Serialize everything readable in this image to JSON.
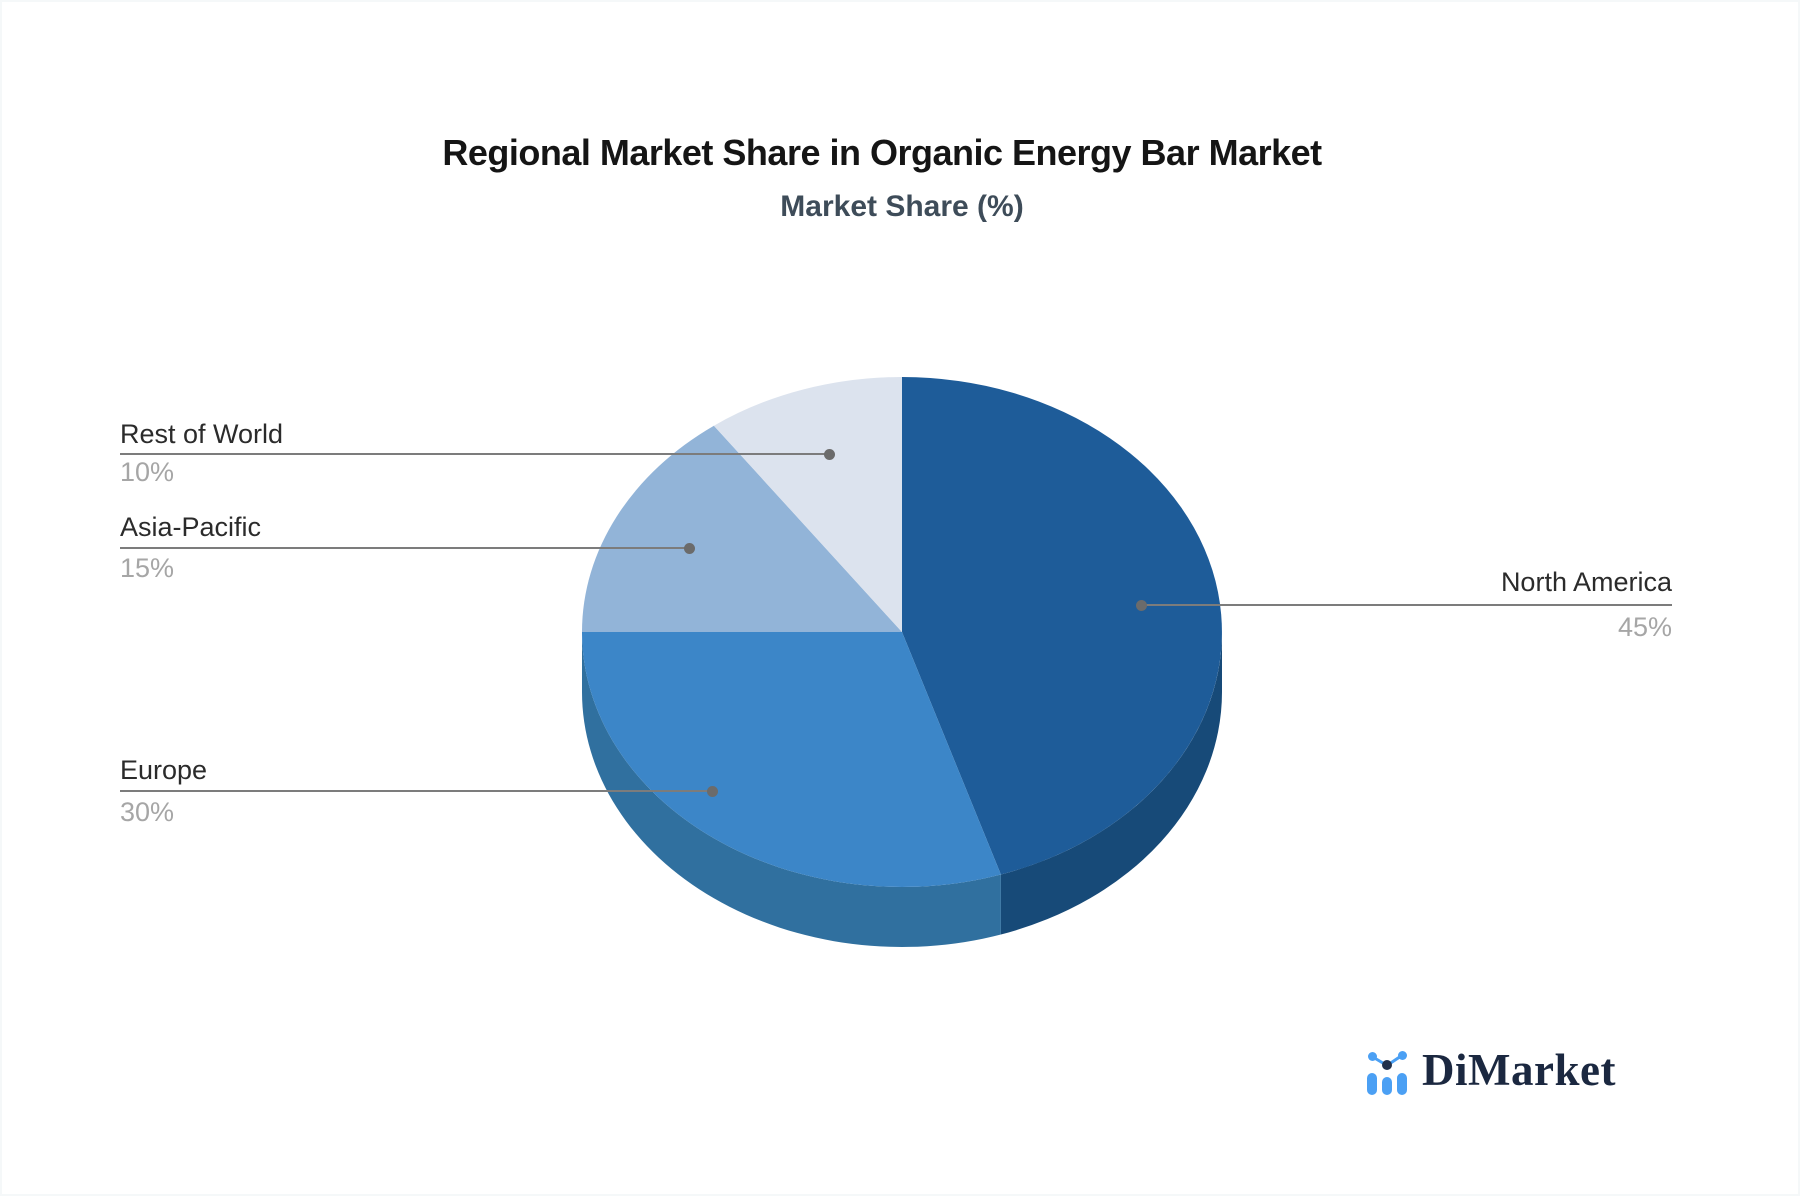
{
  "title": "Regional Market Share in Organic Energy Bar Market",
  "subtitle": "Market Share (%)",
  "chart_data": {
    "type": "pie",
    "title": "Regional Market Share in Organic Energy Bar Market",
    "subtitle": "Market Share (%)",
    "unit": "%",
    "style": "3d",
    "start_angle_deg": 0,
    "direction": "clockwise",
    "legend_position": "callout-labels",
    "slices": [
      {
        "label": "North America",
        "value": 45,
        "pct": "45%",
        "color": "#1E5C99",
        "side_color": "#174A78"
      },
      {
        "label": "Europe",
        "value": 30,
        "pct": "30%",
        "color": "#3C86C8",
        "side_color": "#30709F"
      },
      {
        "label": "Asia-Pacific",
        "value": 15,
        "pct": "15%",
        "color": "#92B4D8",
        "side_color": "#7A9CC0"
      },
      {
        "label": "Rest of World",
        "value": 10,
        "pct": "10%",
        "color": "#DCE3EE",
        "side_color": "#C2CCDC"
      }
    ]
  },
  "style_colors": {
    "title": "#151515",
    "subtitle": "#3E4C59",
    "callout_label": "#2B2B2B",
    "callout_value": "#A6A6A6",
    "leader_line": "#7C7C7C",
    "leader_dot": "#6B6B6B",
    "background": "#FFFFFF"
  },
  "brand": {
    "name": "DiMarket",
    "icon": "bar-line-chart-logo-icon",
    "text_color": "#1B2840",
    "icon_color": "#4BA0F4",
    "icon_dot_color": "#22304A"
  }
}
